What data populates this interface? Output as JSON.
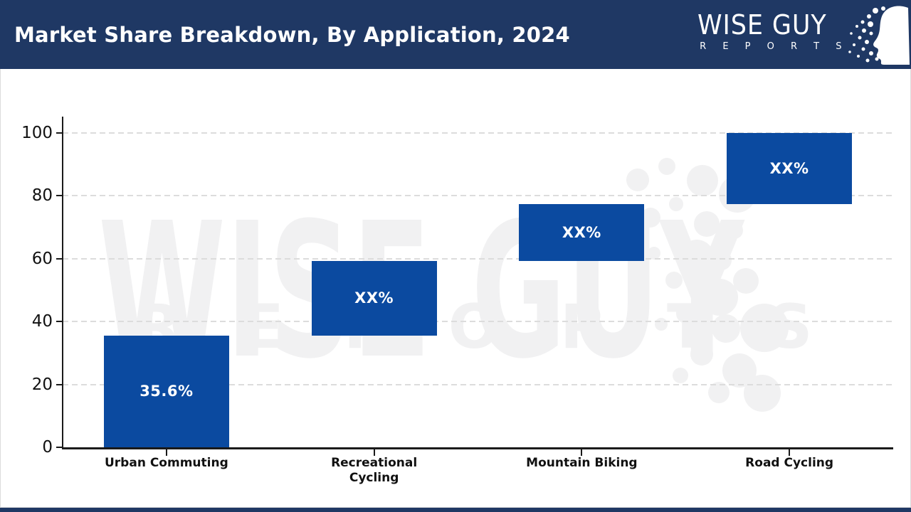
{
  "header": {
    "title": "Market Share Breakdown, By Application, 2024",
    "logo": {
      "line1": "WISE GUY",
      "line2": "R E P O R T S"
    }
  },
  "watermark": {
    "line1": "WISE GUY",
    "line2": "R E P O R T S"
  },
  "colors": {
    "header_bg": "#1f3864",
    "footer_bg": "#1f3864",
    "bar": "#0b4aa0",
    "grid": "#dcdcdc",
    "axis": "#1a1a1a",
    "watermark": "#f1f1f2",
    "title_text": "#ffffff",
    "tick_text": "#111111"
  },
  "chart_data": {
    "type": "bar",
    "subtype": "waterfall-floating-bars",
    "title": "Market Share Breakdown, By Application, 2024",
    "categories": [
      "Urban Commuting",
      "Recreational Cycling",
      "Mountain Biking",
      "Road Cycling"
    ],
    "category_display": [
      "Urban Commuting",
      "Recreational\nCycling",
      "Mountain Biking",
      "Road Cycling"
    ],
    "segments": [
      {
        "category": "Urban Commuting",
        "start": 0,
        "end": 35.6,
        "label": "35.6%"
      },
      {
        "category": "Recreational Cycling",
        "start": 35.6,
        "end": 59.3,
        "label": "XX%"
      },
      {
        "category": "Mountain Biking",
        "start": 59.3,
        "end": 77.4,
        "label": "XX%"
      },
      {
        "category": "Road Cycling",
        "start": 77.4,
        "end": 100,
        "label": "XX%"
      }
    ],
    "xlabel": "",
    "ylabel": "",
    "ylim": [
      0,
      100
    ],
    "yticks": [
      0,
      20,
      40,
      60,
      80,
      100
    ],
    "grid": "horizontal-dashed",
    "legend": "none"
  }
}
